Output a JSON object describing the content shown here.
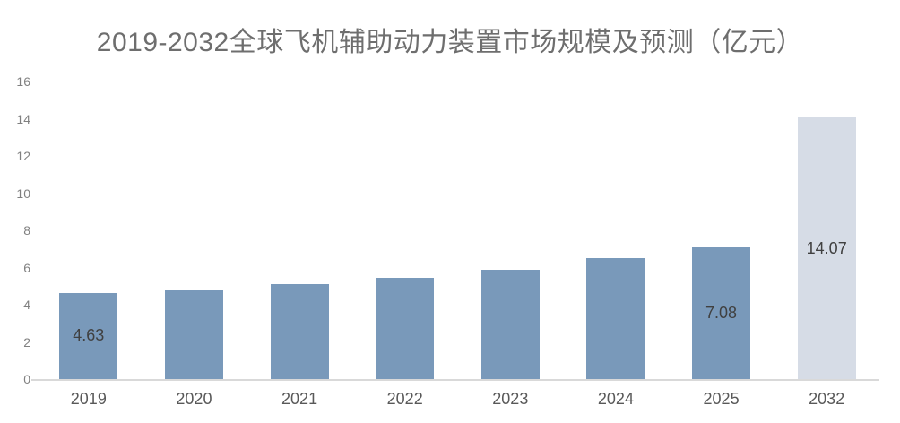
{
  "chart_data": {
    "type": "bar",
    "title": "2019-2032全球飞机辅助动力装置市场规模及预测（亿元）",
    "categories": [
      "2019",
      "2020",
      "2021",
      "2022",
      "2023",
      "2024",
      "2025",
      "2032"
    ],
    "values": [
      4.63,
      4.75,
      5.1,
      5.45,
      5.9,
      6.5,
      7.08,
      14.07
    ],
    "data_labels": [
      "4.63",
      "",
      "",
      "",
      "",
      "",
      "7.08",
      "14.07"
    ],
    "forecast_categories": [
      "2032"
    ],
    "xlabel": "",
    "ylabel": "",
    "ylim": [
      0,
      16
    ],
    "yticks": [
      0,
      2,
      4,
      6,
      8,
      10,
      12,
      14,
      16
    ],
    "grid": false,
    "legend": false,
    "colors": {
      "bar": "#7999BA",
      "forecast_bar": "#D6DCE6",
      "title_text": "#6E6E6E",
      "axis_line": "#D9D9D9",
      "y_tick_text": "#808080",
      "x_tick_text": "#595959",
      "data_label_text": "#404040"
    }
  }
}
